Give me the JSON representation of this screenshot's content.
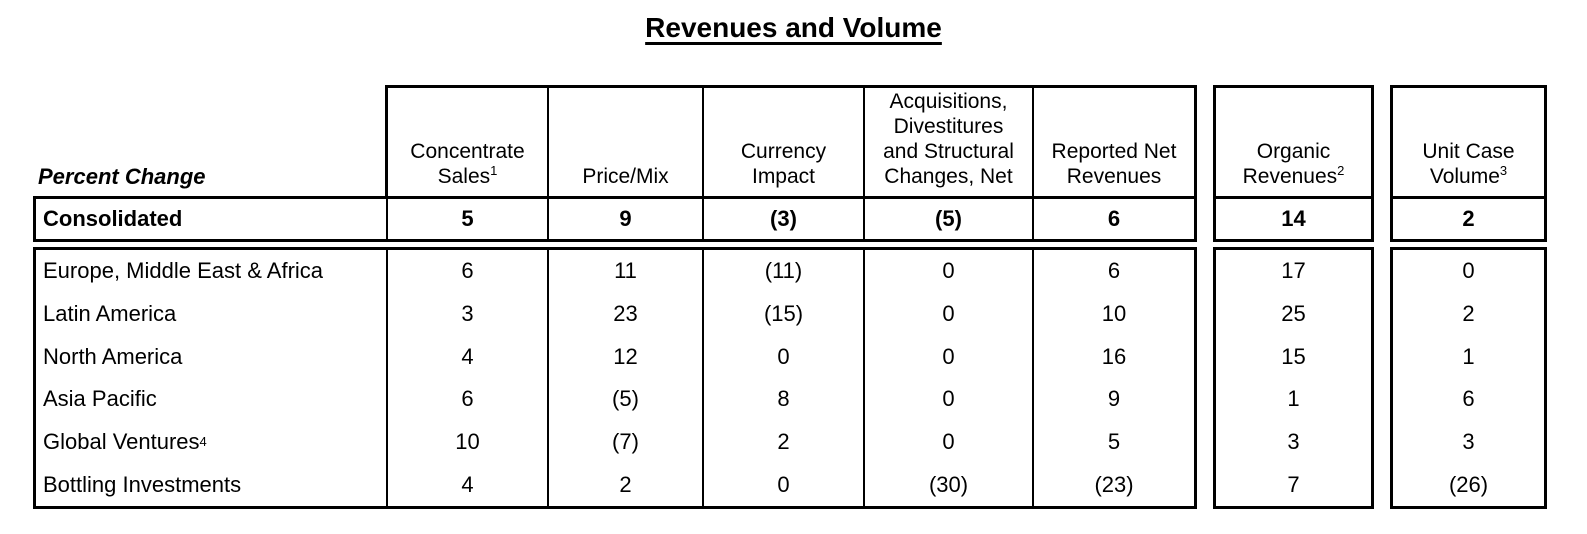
{
  "title": "Revenues and Volume",
  "table": {
    "corner_label": "Percent Change",
    "columns": [
      {
        "label": "Concentrate Sales",
        "sup": "1"
      },
      {
        "label": "Price/Mix",
        "sup": ""
      },
      {
        "label": "Currency Impact",
        "sup": ""
      },
      {
        "label": "Acquisitions, Divestitures and Structural Changes, Net",
        "sup": ""
      },
      {
        "label": "Reported Net Revenues",
        "sup": ""
      },
      {
        "label": "Organic Revenues",
        "sup": "2"
      },
      {
        "label": "Unit Case Volume",
        "sup": "3"
      }
    ],
    "consolidated": {
      "label": "Consolidated",
      "values": [
        "5",
        "9",
        "(3)",
        "(5)",
        "6",
        "14",
        "2"
      ]
    },
    "rows": [
      {
        "label": "Europe, Middle East & Africa",
        "sup": "",
        "values": [
          "6",
          "11",
          "(11)",
          "0",
          "6",
          "17",
          "0"
        ]
      },
      {
        "label": "Latin America",
        "sup": "",
        "values": [
          "3",
          "23",
          "(15)",
          "0",
          "10",
          "25",
          "2"
        ]
      },
      {
        "label": "North America",
        "sup": "",
        "values": [
          "4",
          "12",
          "0",
          "0",
          "16",
          "15",
          "1"
        ]
      },
      {
        "label": "Asia Pacific",
        "sup": "",
        "values": [
          "6",
          "(5)",
          "8",
          "0",
          "9",
          "1",
          "6"
        ]
      },
      {
        "label": "Global Ventures",
        "sup": "4",
        "values": [
          "10",
          "(7)",
          "2",
          "0",
          "5",
          "3",
          "3"
        ]
      },
      {
        "label": "Bottling Investments",
        "sup": "",
        "values": [
          "4",
          "2",
          "0",
          "(30)",
          "(23)",
          "7",
          "(26)"
        ]
      }
    ]
  }
}
